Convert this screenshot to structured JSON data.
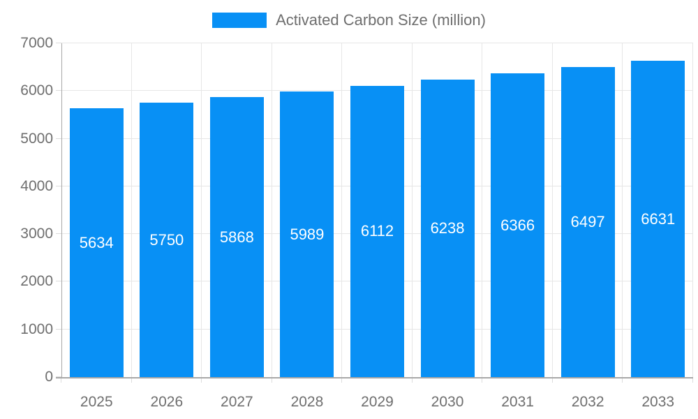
{
  "chart_data": {
    "type": "bar",
    "title": "",
    "legend": {
      "label": "Activated Carbon Size (million)",
      "position": "top"
    },
    "categories": [
      "2025",
      "2026",
      "2027",
      "2028",
      "2029",
      "2030",
      "2031",
      "2032",
      "2033"
    ],
    "series": [
      {
        "name": "Activated Carbon Size (million)",
        "values": [
          5634,
          5750,
          5868,
          5989,
          6112,
          6238,
          6366,
          6497,
          6631
        ]
      }
    ],
    "xlabel": "",
    "ylabel": "",
    "ylim": [
      0,
      7000
    ],
    "yticks": [
      0,
      1000,
      2000,
      3000,
      4000,
      5000,
      6000,
      7000
    ],
    "grid": true,
    "bar_value_labels": "centered-inside",
    "colors": {
      "bar": "#0890f5",
      "bar_label": "#ffffff",
      "grid": "#e6e6e6",
      "tick": "#dcdcdc",
      "axis": "#a8a8a8",
      "text": "#6e6e6e",
      "background": "#ffffff"
    }
  }
}
